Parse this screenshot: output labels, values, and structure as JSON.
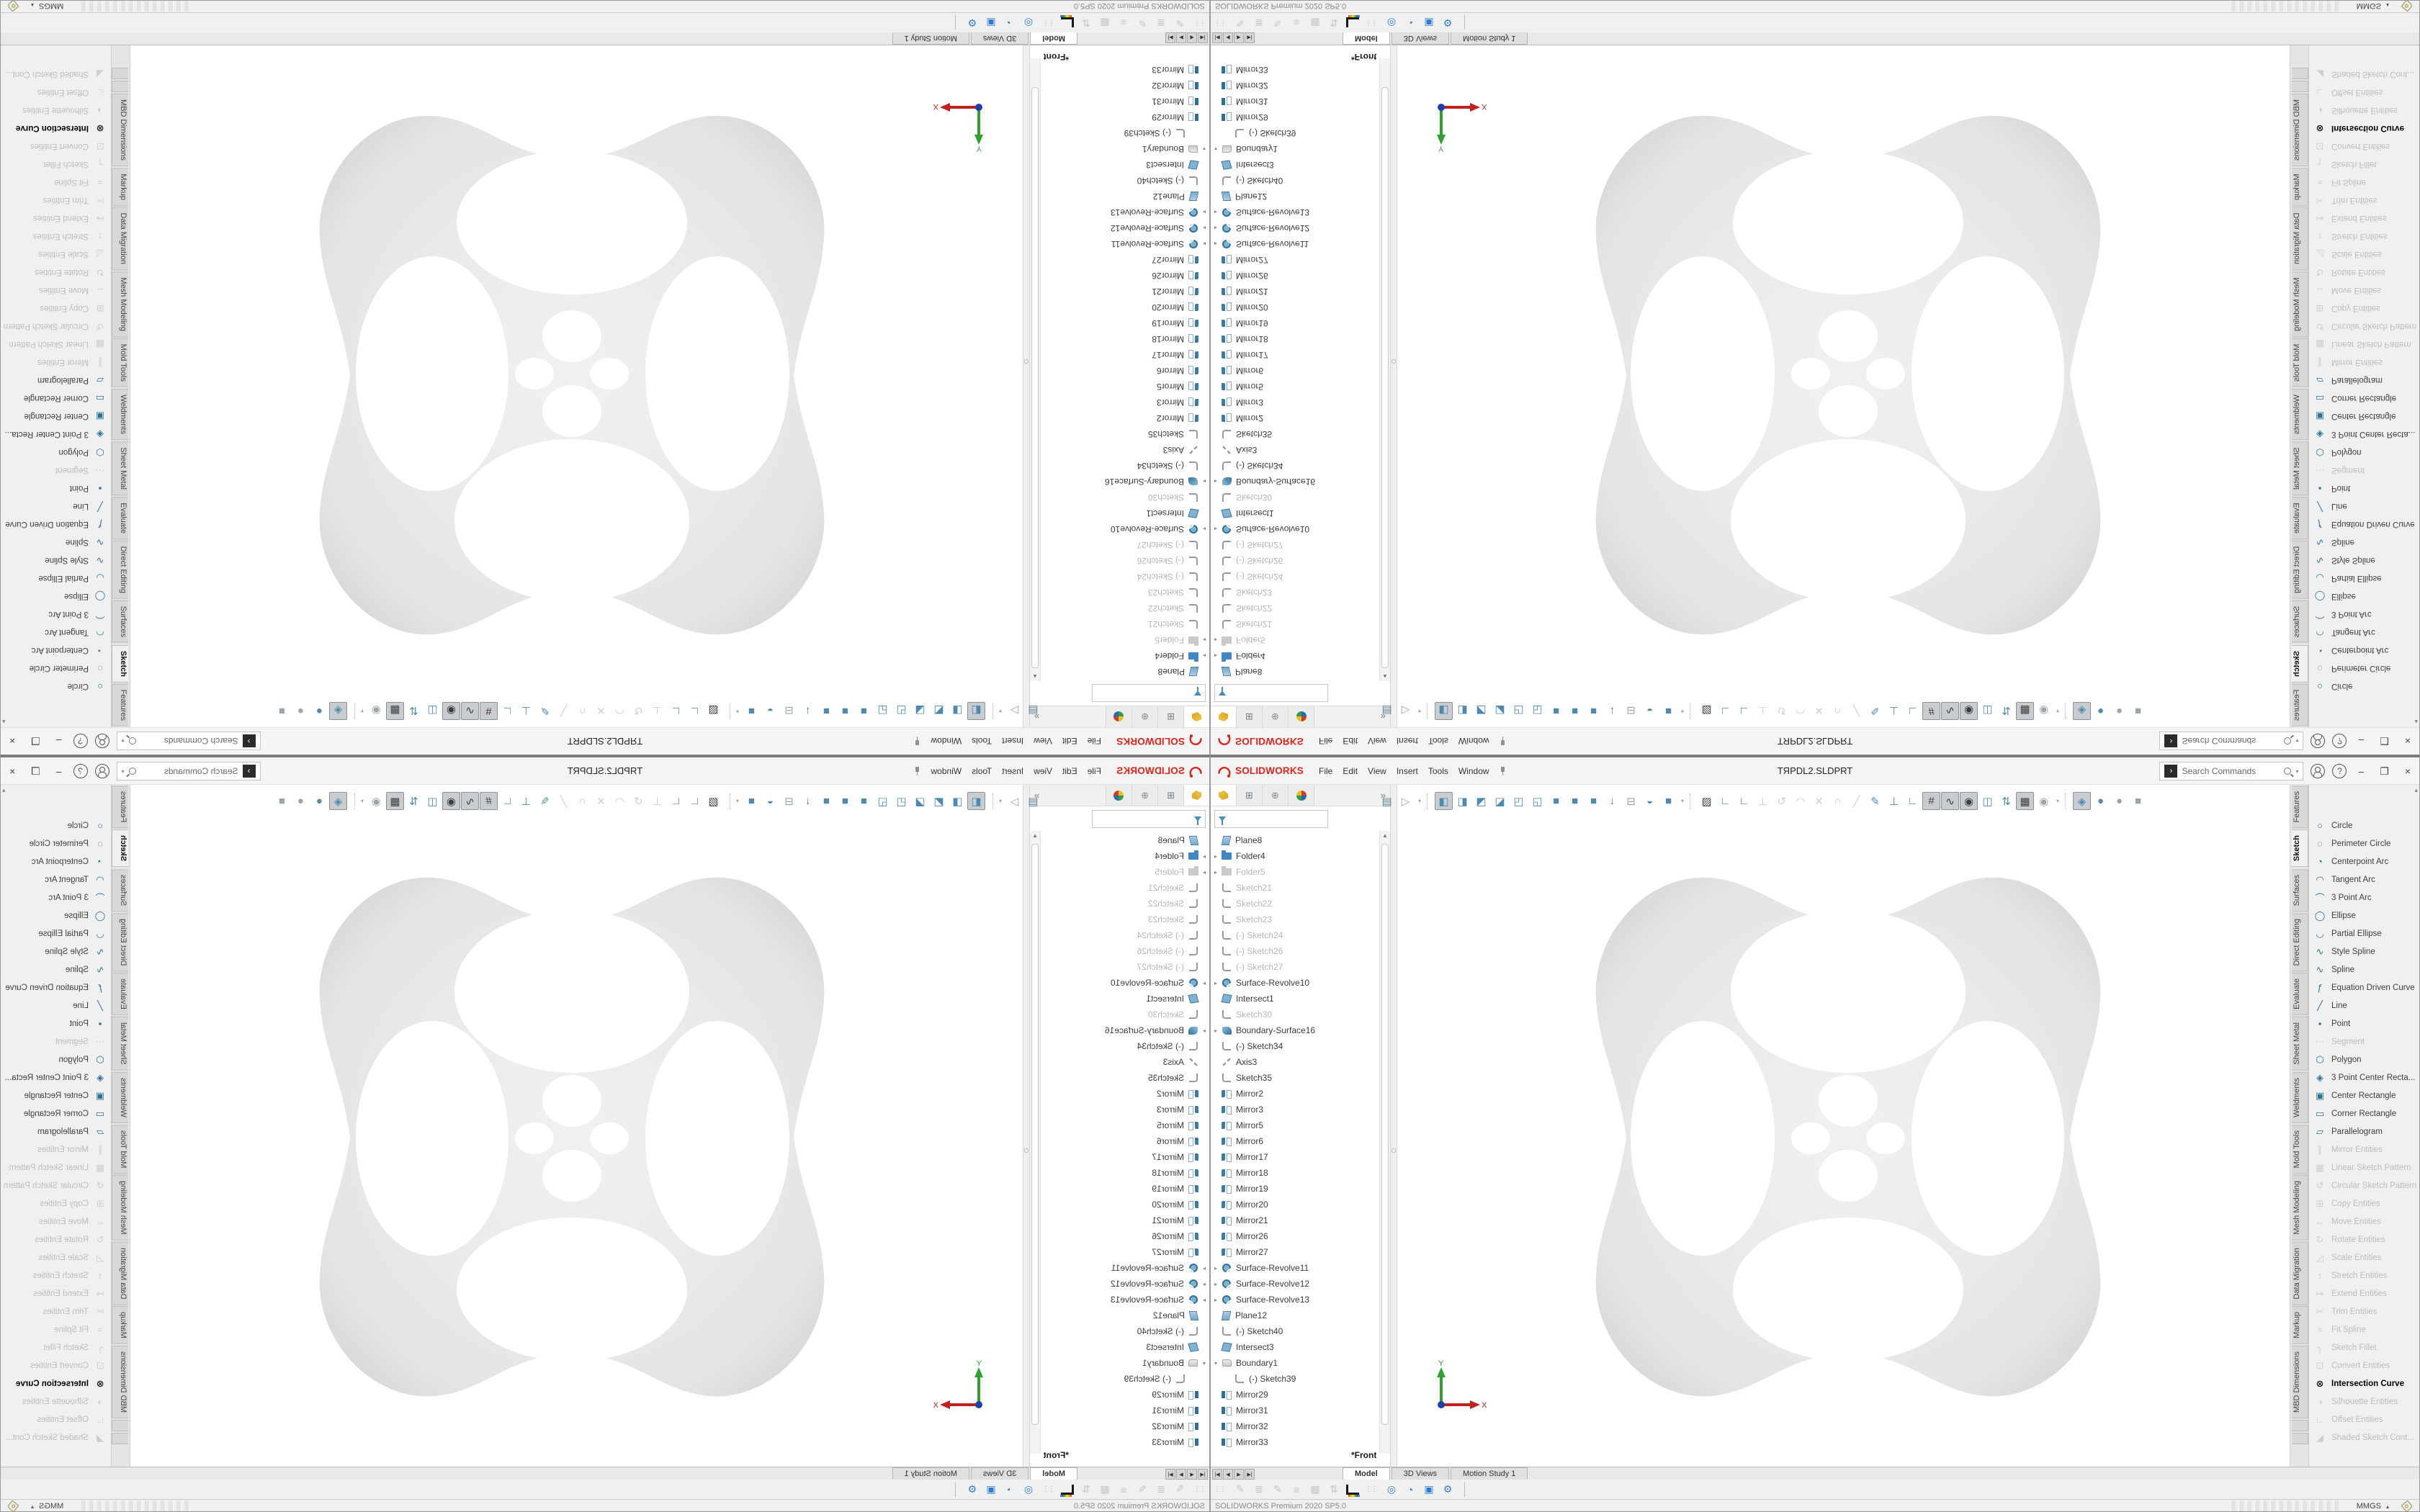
{
  "app": {
    "brand": "SOLIDWORKS",
    "edition": "SOLIDWORKS Premium 2020 SP5.0"
  },
  "titlebar": {
    "title": "TЯPDL2.SLDPRT",
    "menus": [
      "File",
      "Edit",
      "View",
      "Insert",
      "Tools",
      "Window"
    ],
    "search_placeholder": "Search Commands",
    "window_controls": [
      {
        "name": "user-icon"
      },
      {
        "name": "help-icon",
        "glyph": "?"
      },
      {
        "name": "minimize-icon",
        "glyph": "–"
      },
      {
        "name": "restore-icon",
        "glyph": "❐"
      },
      {
        "name": "close-icon",
        "glyph": "×"
      }
    ]
  },
  "child_window_controls": [
    {
      "name": "dock-left-icon",
      "glyph": "◧"
    },
    {
      "name": "dock-right-icon",
      "glyph": "◨"
    },
    {
      "name": "minimize-icon",
      "glyph": "–"
    },
    {
      "name": "restore-icon",
      "glyph": "⊡"
    },
    {
      "name": "close-icon",
      "glyph": "×"
    }
  ],
  "top_toolbar": [
    {
      "name": "save-icon",
      "g": "▤",
      "c": "c-std"
    },
    {
      "name": "pack-and-go-icon",
      "g": "▷",
      "c": "c-mut"
    },
    {
      "name": "dropdown-caret",
      "g": "▾",
      "c": "c-mut",
      "small": true
    },
    {
      "sep": true
    },
    {
      "name": "view-front-icon",
      "g": "◧",
      "c": "c-blue",
      "pressed": true
    },
    {
      "name": "view-back-icon",
      "g": "◨",
      "c": "c-blue"
    },
    {
      "name": "view-left-icon",
      "g": "◩",
      "c": "c-blue"
    },
    {
      "name": "view-right-icon",
      "g": "◪",
      "c": "c-blue"
    },
    {
      "name": "view-top-icon",
      "g": "◰",
      "c": "c-blue"
    },
    {
      "name": "view-bottom-icon",
      "g": "◱",
      "c": "c-blue"
    },
    {
      "name": "view-iso-icon",
      "g": "■",
      "c": "c-blue"
    },
    {
      "name": "view-dimetric-icon",
      "g": "■",
      "c": "c-blue"
    },
    {
      "name": "view-trimetric-icon",
      "g": "■",
      "c": "c-blue"
    },
    {
      "name": "normal-to-icon",
      "g": "↓",
      "c": "c-std"
    },
    {
      "name": "update-view-icon",
      "g": "⊟",
      "c": "c-mut"
    },
    {
      "name": "section-view-icon",
      "g": "◒",
      "c": "c-blue"
    },
    {
      "name": "display-style-icon",
      "g": "■",
      "c": "c-blue"
    },
    {
      "name": "dropdown-caret",
      "g": "▾",
      "c": "c-mut",
      "small": true
    },
    {
      "sep": true
    },
    {
      "name": "zebra-stripes-icon",
      "g": "▨",
      "c": "c-dark"
    },
    {
      "name": "sketch-grid-icon",
      "g": "∟",
      "c": "c-blue"
    },
    {
      "name": "sketch-3d-grid-icon",
      "g": "∟",
      "c": "c-blue"
    },
    {
      "name": "dimension-icon",
      "g": "⊥",
      "c": "c-dis"
    },
    {
      "name": "arc-tool-icon",
      "g": "↺",
      "c": "c-dis"
    },
    {
      "name": "curve-tool-icon",
      "g": "◠",
      "c": "c-dis"
    },
    {
      "name": "trim-tool-icon",
      "g": "✕",
      "c": "c-dis"
    },
    {
      "name": "loft-tool-icon",
      "g": "∩",
      "c": "c-dis"
    },
    {
      "name": "line-tool-icon",
      "g": "╱",
      "c": "c-dis"
    },
    {
      "name": "color-sketch-icon",
      "g": "✎",
      "c": "c-blue"
    },
    {
      "name": "instant3d-icon",
      "g": "⊥",
      "c": "c-blue"
    },
    {
      "name": "corner-view-icon",
      "g": "∟",
      "c": "c-blue"
    },
    {
      "name": "hide-3d-sketch-icon",
      "g": "#",
      "c": "c-dark",
      "pressed": true
    },
    {
      "name": "hide-splines-icon",
      "g": "∿",
      "c": "c-dark",
      "pressed": true
    },
    {
      "name": "hide-points-icon",
      "g": "◉",
      "c": "c-dark",
      "pressed": true
    },
    {
      "name": "hide-planes-icon",
      "g": "◫",
      "c": "c-blue"
    },
    {
      "name": "hide-axes-icon",
      "g": "⇅",
      "c": "c-blue"
    },
    {
      "name": "hide-grid-icon",
      "g": "▦",
      "c": "c-dark",
      "pressed": true
    },
    {
      "name": "eye-icon",
      "g": "◉",
      "c": "c-mut"
    },
    {
      "name": "dropdown-caret",
      "g": "▾",
      "c": "c-mut",
      "small": true
    },
    {
      "sep": true
    },
    {
      "name": "rapid-sketch-icon",
      "g": "◈",
      "c": "c-blue",
      "pressed": true
    },
    {
      "name": "shaded-sphere-icon",
      "g": "●",
      "c": "c-blue"
    },
    {
      "name": "gray-sphere-icon",
      "g": "●",
      "c": "c-mut"
    },
    {
      "name": "gray-cube-icon",
      "g": "■",
      "c": "c-mut"
    }
  ],
  "feature_manager": {
    "tabs": [
      {
        "name": "featuremanager-tree-tab",
        "active": true
      },
      {
        "name": "propertymanager-tab",
        "active": false
      },
      {
        "name": "configurationmanager-tab",
        "active": false
      },
      {
        "name": "displaymanager-tab",
        "active": false
      }
    ],
    "chevron": "»",
    "items": [
      {
        "label": "Plane8",
        "icon": "plane"
      },
      {
        "label": "Folder4",
        "icon": "folder",
        "expand": "right"
      },
      {
        "label": "Folder5",
        "icon": "folder-gray",
        "expand": "right",
        "ghost": true
      },
      {
        "label": "Sketch21",
        "icon": "sketch",
        "ghost": true
      },
      {
        "label": "Sketch22",
        "icon": "sketch",
        "ghost": true
      },
      {
        "label": "Sketch23",
        "icon": "sketch",
        "ghost": true
      },
      {
        "label": "(-) Sketch24",
        "icon": "sketch",
        "ghost": true
      },
      {
        "label": "(-) Sketch26",
        "icon": "sketch",
        "ghost": true
      },
      {
        "label": "(-) Sketch27",
        "icon": "sketch",
        "ghost": true
      },
      {
        "label": "Surface-Revolve10",
        "icon": "revolve",
        "expand": "right"
      },
      {
        "label": "Intersect1",
        "icon": "intersect"
      },
      {
        "label": "Sketch30",
        "icon": "sketch",
        "ghost": true
      },
      {
        "label": "Boundary-Surface16",
        "icon": "boundary",
        "expand": "right"
      },
      {
        "label": "(-) Sketch34",
        "icon": "sketch"
      },
      {
        "label": "Axis3",
        "icon": "axis"
      },
      {
        "label": "Sketch35",
        "icon": "sketch"
      },
      {
        "label": "Mirror2",
        "icon": "mirror-srf"
      },
      {
        "label": "Mirror3",
        "icon": "mirror-srf"
      },
      {
        "label": "Mirror5",
        "icon": "mirror-srf"
      },
      {
        "label": "Mirror6",
        "icon": "mirror-srf"
      },
      {
        "label": "Mirror17",
        "icon": "mirror-srf"
      },
      {
        "label": "Mirror18",
        "icon": "mirror-srf"
      },
      {
        "label": "Mirror19",
        "icon": "mirror-srf"
      },
      {
        "label": "Mirror20",
        "icon": "mirror-srf"
      },
      {
        "label": "Mirror21",
        "icon": "mirror-srf"
      },
      {
        "label": "Mirror26",
        "icon": "mirror-srf"
      },
      {
        "label": "Mirror27",
        "icon": "mirror-srf"
      },
      {
        "label": "Surface-Revolve11",
        "icon": "revolve",
        "expand": "right"
      },
      {
        "label": "Surface-Revolve12",
        "icon": "revolve",
        "expand": "right"
      },
      {
        "label": "Surface-Revolve13",
        "icon": "revolve",
        "expand": "right"
      },
      {
        "label": "Plane12",
        "icon": "plane"
      },
      {
        "label": "(-) Sketch40",
        "icon": "sketch"
      },
      {
        "label": "Intersect3",
        "icon": "intersect"
      },
      {
        "label": "Boundary1",
        "icon": "boundary-sld",
        "expand": "down"
      },
      {
        "label": "(-) Sketch39",
        "icon": "sketch",
        "indent": 1
      },
      {
        "label": "Mirror29",
        "icon": "mirror-sld"
      },
      {
        "label": "Mirror31",
        "icon": "mirror-sld"
      },
      {
        "label": "Mirror32",
        "icon": "mirror-sld"
      },
      {
        "label": "Mirror33",
        "icon": "mirror-sld"
      }
    ]
  },
  "viewport": {
    "view_label": "*Front",
    "triad_x": "X",
    "triad_y": "Y"
  },
  "command_manager": {
    "tabs": [
      {
        "label": "Features"
      },
      {
        "label": "Sketch",
        "active": true
      },
      {
        "label": "Surfaces"
      },
      {
        "label": "Direct Editing"
      },
      {
        "label": "Evaluate"
      },
      {
        "label": "Sheet Metal"
      },
      {
        "label": "Weldments"
      },
      {
        "label": "Mold Tools"
      },
      {
        "label": "Mesh Modeling"
      },
      {
        "label": "Data Migration"
      },
      {
        "label": "Markup"
      },
      {
        "label": "MBD Dimensions"
      },
      {
        "label": "",
        "stub": true
      },
      {
        "label": "",
        "stub": true
      }
    ],
    "tools": [
      {
        "label": "Circle",
        "g": "○",
        "enabled": true
      },
      {
        "label": "Perimeter Circle",
        "g": "◌",
        "enabled": true
      },
      {
        "label": "Centerpoint Arc",
        "g": "◔",
        "enabled": true
      },
      {
        "label": "Tangent Arc",
        "g": "◠",
        "enabled": true
      },
      {
        "label": "3 Point Arc",
        "g": "⌒",
        "enabled": true
      },
      {
        "label": "Ellipse",
        "g": "◯",
        "enabled": true
      },
      {
        "label": "Partial Ellipse",
        "g": "◡",
        "enabled": true
      },
      {
        "label": "Style Spline",
        "g": "∿",
        "enabled": true
      },
      {
        "label": "Spline",
        "g": "∿",
        "enabled": true
      },
      {
        "label": "Equation Driven Curve",
        "g": "ƒ",
        "enabled": true
      },
      {
        "label": "Line",
        "g": "╱",
        "enabled": true
      },
      {
        "label": "Point",
        "g": "▪",
        "enabled": true
      },
      {
        "label": "Segment",
        "g": "⋯",
        "enabled": false
      },
      {
        "label": "Polygon",
        "g": "⬡",
        "enabled": true
      },
      {
        "label": "3 Point Center Recta...",
        "g": "◈",
        "enabled": true
      },
      {
        "label": "Center Rectangle",
        "g": "▣",
        "enabled": true
      },
      {
        "label": "Corner Rectangle",
        "g": "▭",
        "enabled": true
      },
      {
        "label": "Parallelogram",
        "g": "▱",
        "enabled": true
      },
      {
        "label": "Mirror Entities",
        "g": "∥",
        "enabled": false
      },
      {
        "label": "Linear Sketch Pattern",
        "g": "▦",
        "enabled": false
      },
      {
        "label": "Circular Sketch Pattern",
        "g": "↺",
        "enabled": false
      },
      {
        "label": "Copy Entities",
        "g": "⊞",
        "enabled": false
      },
      {
        "label": "Move Entities",
        "g": "↔",
        "enabled": false
      },
      {
        "label": "Rotate Entities",
        "g": "↻",
        "enabled": false
      },
      {
        "label": "Scale Entities",
        "g": "◿",
        "enabled": false
      },
      {
        "label": "Stretch Entities",
        "g": "↕",
        "enabled": false
      },
      {
        "label": "Extend Entities",
        "g": "↦",
        "enabled": false
      },
      {
        "label": "Trim Entities",
        "g": "✂",
        "enabled": false
      },
      {
        "label": "Fit Spline",
        "g": "≈",
        "enabled": false
      },
      {
        "label": "Sketch Fillet",
        "g": "╮",
        "enabled": false
      },
      {
        "label": "Convert Entities",
        "g": "⊡",
        "enabled": false
      },
      {
        "label": "Intersection Curve",
        "g": "⊗",
        "enabled": true,
        "active": true
      },
      {
        "label": "Silhouette Entities",
        "g": "◑",
        "enabled": false
      },
      {
        "label": "Offset Entities",
        "g": "∟",
        "enabled": false
      },
      {
        "label": "Shaded Sketch Cont...",
        "g": "◢",
        "enabled": false
      }
    ]
  },
  "doc_tabs": {
    "nav": [
      "|◀",
      "◀",
      "▶",
      "▶|"
    ],
    "tabs": [
      {
        "label": "Model",
        "active": true
      },
      {
        "label": "3D Views",
        "active": false
      },
      {
        "label": "Motion Study 1",
        "active": false
      }
    ]
  },
  "bottom_toolbar": {
    "gray_icons": [
      {
        "name": "markup-pen-icon",
        "g": "✎"
      },
      {
        "name": "layers-icon",
        "g": "≣"
      },
      {
        "name": "pencil-icon",
        "g": "✎"
      },
      {
        "name": "lines-icon",
        "g": "≡"
      },
      {
        "name": "table-icon",
        "g": "▦"
      },
      {
        "name": "sort-icon",
        "g": "⇅"
      }
    ],
    "blue_icons": [
      {
        "name": "verify-icon",
        "g": "◎"
      },
      {
        "name": "schedule-icon",
        "g": "◔"
      },
      {
        "name": "folder-check-icon",
        "g": "▣"
      },
      {
        "name": "settings-gear-icon",
        "g": "⚙"
      }
    ]
  },
  "status_bar": {
    "left_text": "SOLIDWORKS Premium 2020 SP5.0",
    "units": "MMGS",
    "stripe_count": 14
  }
}
